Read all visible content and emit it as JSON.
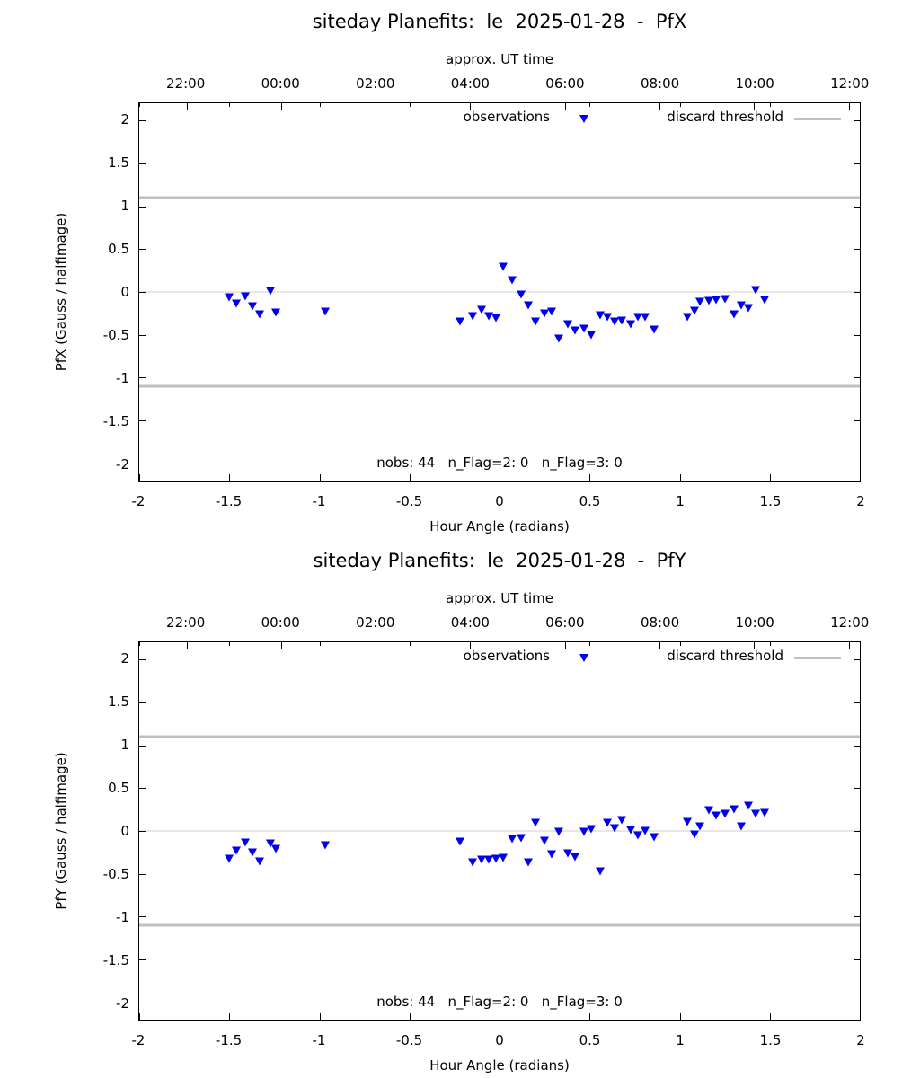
{
  "colors": {
    "marker_blue": "#0000ee",
    "threshold_gray": "#bfbfbf",
    "zero_line_gray": "#cfcfcf",
    "axis_black": "#000000"
  },
  "plots": [
    {
      "title": "siteday Planefits:  le  2025-01-28  -  PfX",
      "top_axis_label": "approx. UT time",
      "top_axis_ticks": [
        "22:00",
        "00:00",
        "02:00",
        "04:00",
        "06:00",
        "08:00",
        "10:00",
        "12:00"
      ],
      "x_axis_label": "Hour Angle (radians)",
      "x_ticks": [
        "-2",
        "-1.5",
        "-1",
        "-0.5",
        "0",
        "0.5",
        "1",
        "1.5",
        "2"
      ],
      "y_axis_label": "PfX (Gauss / halfimage)",
      "y_ticks": [
        "2",
        "1.5",
        "1",
        "0.5",
        "0",
        "-0.5",
        "-1",
        "-1.5",
        "-2"
      ],
      "legend": {
        "observations": "observations",
        "discard_threshold": "discard threshold"
      },
      "stats": "nobs: 44   n_Flag=2: 0   n_Flag=3: 0"
    },
    {
      "title": "siteday Planefits:  le  2025-01-28  -  PfY",
      "top_axis_label": "approx. UT time",
      "top_axis_ticks": [
        "22:00",
        "00:00",
        "02:00",
        "04:00",
        "06:00",
        "08:00",
        "10:00",
        "12:00"
      ],
      "x_axis_label": "Hour Angle (radians)",
      "x_ticks": [
        "-2",
        "-1.5",
        "-1",
        "-0.5",
        "0",
        "0.5",
        "1",
        "1.5",
        "2"
      ],
      "y_axis_label": "PfY (Gauss / halfimage)",
      "y_ticks": [
        "2",
        "1.5",
        "1",
        "0.5",
        "0",
        "-0.5",
        "-1",
        "-1.5",
        "-2"
      ],
      "legend": {
        "observations": "observations",
        "discard_threshold": "discard threshold"
      },
      "stats": "nobs: 44   n_Flag=2: 0   n_Flag=3: 0"
    }
  ],
  "chart_data": [
    {
      "type": "scatter",
      "title": "siteday Planefits: le 2025-01-28 - PfX",
      "xlabel": "Hour Angle (radians)",
      "ylabel": "PfX (Gauss / halfimage)",
      "x2label": "approx. UT time",
      "xlim": [
        -2,
        2
      ],
      "ylim": [
        -2.2,
        2.2
      ],
      "x_tick_values": [
        -2,
        -1.5,
        -1,
        -0.5,
        0,
        0.5,
        1,
        1.5,
        2
      ],
      "y_tick_values": [
        2,
        1.5,
        1,
        0.5,
        0,
        -0.5,
        -1,
        -1.5,
        -2
      ],
      "x2_tick_labels": [
        "22:00",
        "00:00",
        "02:00",
        "04:00",
        "06:00",
        "08:00",
        "10:00",
        "12:00"
      ],
      "x2_tick_fractions": [
        6.55,
        19.68,
        32.81,
        45.94,
        59.07,
        72.21,
        85.34,
        98.47
      ],
      "zero_line": 0,
      "discard_threshold": [
        1.1,
        -1.1
      ],
      "legend": [
        "observations",
        "discard threshold"
      ],
      "nobs": 44,
      "n_flag2": 0,
      "n_flag3": 0,
      "grid": false,
      "points": [
        [
          -1.5,
          -0.06
        ],
        [
          -1.46,
          -0.14
        ],
        [
          -1.41,
          -0.05
        ],
        [
          -1.37,
          -0.17
        ],
        [
          -1.33,
          -0.26
        ],
        [
          -1.27,
          0.01
        ],
        [
          -1.24,
          -0.24
        ],
        [
          -0.97,
          -0.23
        ],
        [
          -0.22,
          -0.35
        ],
        [
          -0.15,
          -0.28
        ],
        [
          -0.1,
          -0.21
        ],
        [
          -0.06,
          -0.28
        ],
        [
          -0.02,
          -0.3
        ],
        [
          0.02,
          0.29
        ],
        [
          0.07,
          0.14
        ],
        [
          0.12,
          -0.03
        ],
        [
          0.16,
          -0.16
        ],
        [
          0.2,
          -0.35
        ],
        [
          0.25,
          -0.25
        ],
        [
          0.29,
          -0.23
        ],
        [
          0.33,
          -0.54
        ],
        [
          0.38,
          -0.38
        ],
        [
          0.42,
          -0.45
        ],
        [
          0.47,
          -0.43
        ],
        [
          0.51,
          -0.5
        ],
        [
          0.56,
          -0.27
        ],
        [
          0.6,
          -0.29
        ],
        [
          0.64,
          -0.35
        ],
        [
          0.68,
          -0.34
        ],
        [
          0.73,
          -0.38
        ],
        [
          0.77,
          -0.29
        ],
        [
          0.81,
          -0.29
        ],
        [
          0.86,
          -0.44
        ],
        [
          1.04,
          -0.29
        ],
        [
          1.08,
          -0.22
        ],
        [
          1.11,
          -0.12
        ],
        [
          1.16,
          -0.1
        ],
        [
          1.2,
          -0.09
        ],
        [
          1.25,
          -0.08
        ],
        [
          1.3,
          -0.26
        ],
        [
          1.34,
          -0.16
        ],
        [
          1.38,
          -0.19
        ],
        [
          1.42,
          0.02
        ],
        [
          1.47,
          -0.09
        ]
      ]
    },
    {
      "type": "scatter",
      "title": "siteday Planefits: le 2025-01-28 - PfY",
      "xlabel": "Hour Angle (radians)",
      "ylabel": "PfY (Gauss / halfimage)",
      "x2label": "approx. UT time",
      "xlim": [
        -2,
        2
      ],
      "ylim": [
        -2.2,
        2.2
      ],
      "x_tick_values": [
        -2,
        -1.5,
        -1,
        -0.5,
        0,
        0.5,
        1,
        1.5,
        2
      ],
      "y_tick_values": [
        2,
        1.5,
        1,
        0.5,
        0,
        -0.5,
        -1,
        -1.5,
        -2
      ],
      "x2_tick_labels": [
        "22:00",
        "00:00",
        "02:00",
        "04:00",
        "06:00",
        "08:00",
        "10:00",
        "12:00"
      ],
      "x2_tick_fractions": [
        6.55,
        19.68,
        32.81,
        45.94,
        59.07,
        72.21,
        85.34,
        98.47
      ],
      "zero_line": 0,
      "discard_threshold": [
        1.1,
        -1.1
      ],
      "legend": [
        "observations",
        "discard threshold"
      ],
      "nobs": 44,
      "n_flag2": 0,
      "n_flag3": 0,
      "grid": false,
      "points": [
        [
          -1.5,
          -0.32
        ],
        [
          -1.46,
          -0.23
        ],
        [
          -1.41,
          -0.14
        ],
        [
          -1.37,
          -0.25
        ],
        [
          -1.33,
          -0.36
        ],
        [
          -1.27,
          -0.15
        ],
        [
          -1.24,
          -0.21
        ],
        [
          -0.97,
          -0.17
        ],
        [
          -0.22,
          -0.13
        ],
        [
          -0.15,
          -0.37
        ],
        [
          -0.1,
          -0.33
        ],
        [
          -0.06,
          -0.34
        ],
        [
          -0.02,
          -0.32
        ],
        [
          0.02,
          -0.31
        ],
        [
          0.07,
          -0.09
        ],
        [
          0.12,
          -0.08
        ],
        [
          0.16,
          -0.37
        ],
        [
          0.2,
          0.09
        ],
        [
          0.25,
          -0.11
        ],
        [
          0.29,
          -0.27
        ],
        [
          0.33,
          -0.01
        ],
        [
          0.38,
          -0.26
        ],
        [
          0.42,
          -0.3
        ],
        [
          0.47,
          -0.01
        ],
        [
          0.51,
          0.02
        ],
        [
          0.56,
          -0.47
        ],
        [
          0.6,
          0.09
        ],
        [
          0.64,
          0.03
        ],
        [
          0.68,
          0.13
        ],
        [
          0.73,
          0.01
        ],
        [
          0.77,
          -0.05
        ],
        [
          0.81,
          0.0
        ],
        [
          0.86,
          -0.07
        ],
        [
          1.04,
          0.1
        ],
        [
          1.08,
          -0.04
        ],
        [
          1.11,
          0.05
        ],
        [
          1.16,
          0.24
        ],
        [
          1.2,
          0.18
        ],
        [
          1.25,
          0.2
        ],
        [
          1.3,
          0.25
        ],
        [
          1.34,
          0.05
        ],
        [
          1.38,
          0.29
        ],
        [
          1.42,
          0.2
        ],
        [
          1.47,
          0.21
        ]
      ]
    }
  ]
}
